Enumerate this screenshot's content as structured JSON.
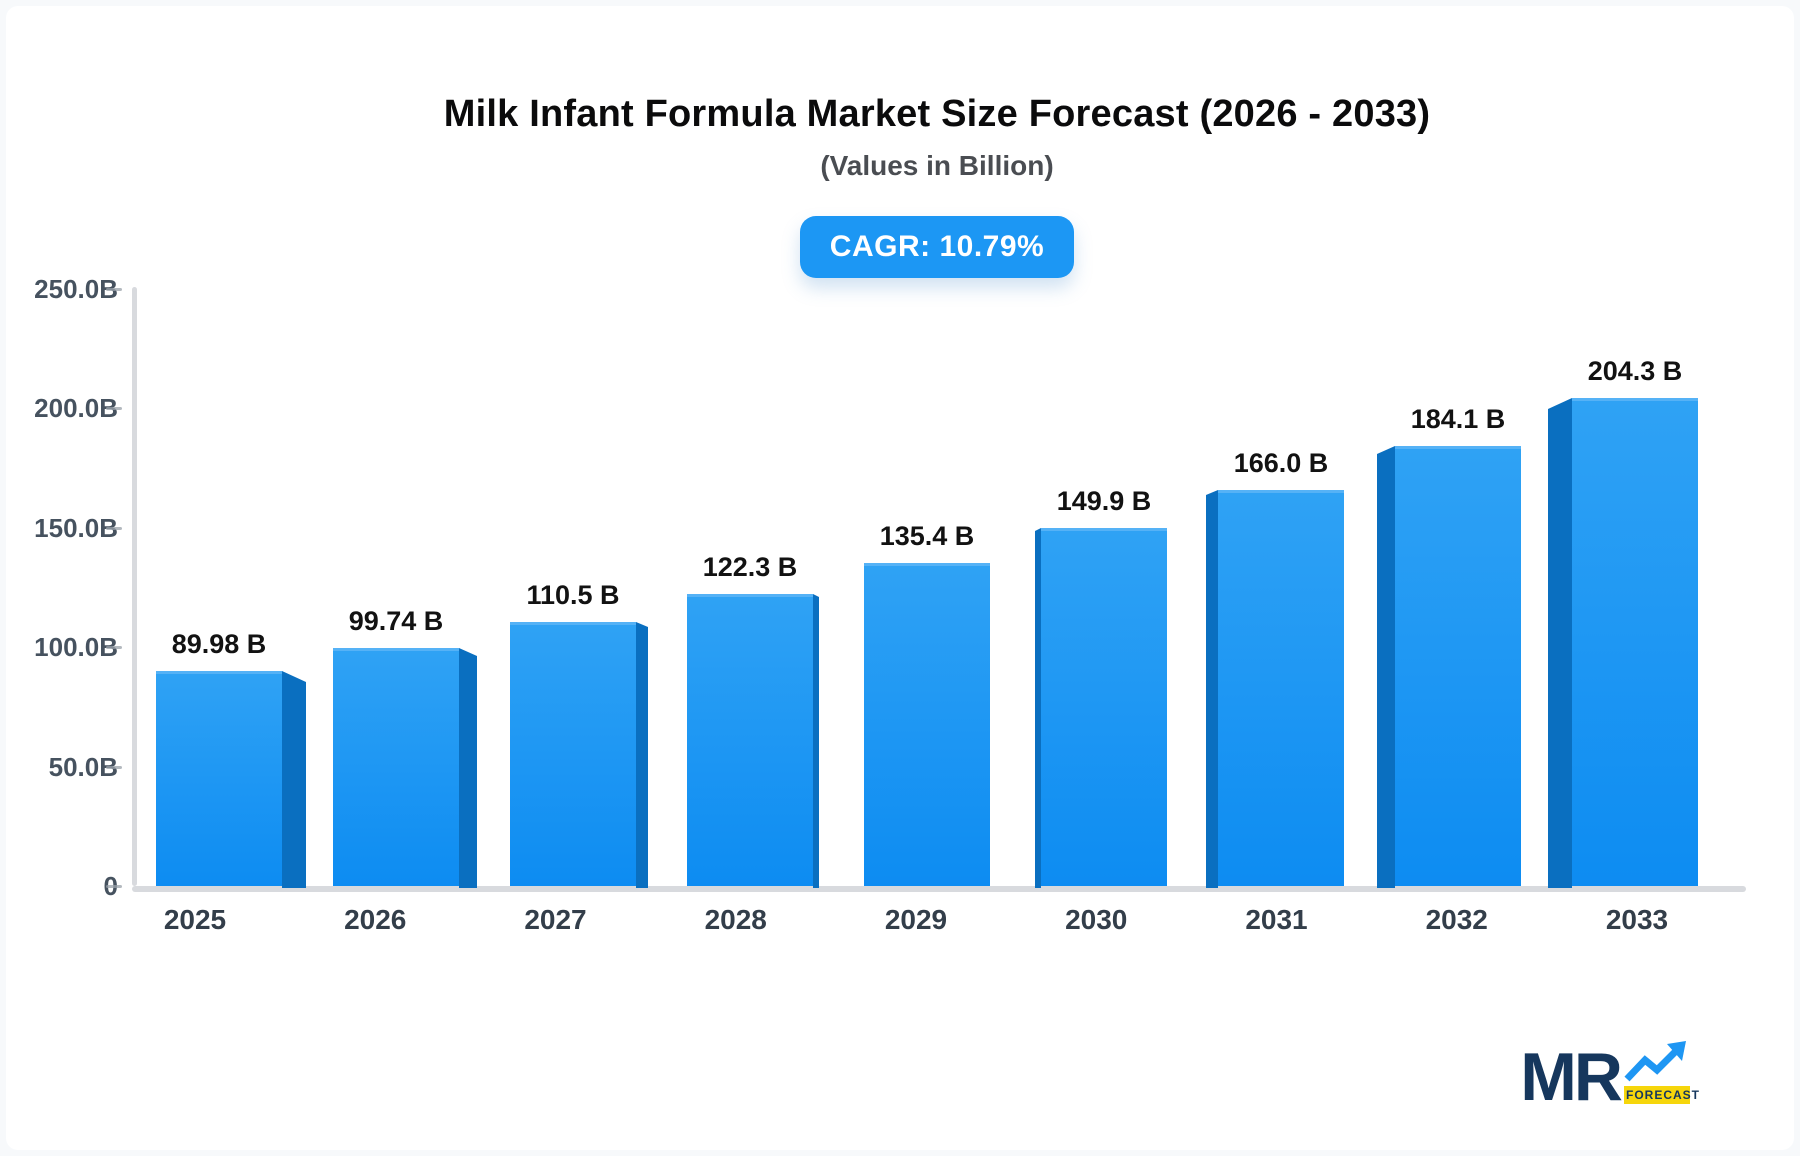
{
  "header": {
    "title": "Milk Infant Formula Market Size Forecast (2026 - 2033)",
    "subtitle": "(Values in Billion)",
    "cagr_label": "CAGR: 10.79%"
  },
  "chart_data": {
    "type": "bar",
    "bar_style": "3d-column",
    "title": "Milk Infant Formula Market Size Forecast (2026 - 2033)",
    "subtitle": "(Values in Billion)",
    "cagr_percent": 10.79,
    "values_unit": "Billion",
    "categories": [
      "2025",
      "2026",
      "2027",
      "2028",
      "2029",
      "2030",
      "2031",
      "2032",
      "2033"
    ],
    "values": [
      89.98,
      99.74,
      110.5,
      122.3,
      135.4,
      149.9,
      166.0,
      184.1,
      204.3
    ],
    "value_labels": [
      "89.98 B",
      "99.74 B",
      "110.5 B",
      "122.3 B",
      "135.4 B",
      "149.9 B",
      "166.0 B",
      "184.1 B",
      "204.3 B"
    ],
    "ylim": [
      0,
      250
    ],
    "yticks": [
      {
        "value": 0,
        "label": "0"
      },
      {
        "value": 50,
        "label": "50.0B"
      },
      {
        "value": 100,
        "label": "100.0B"
      },
      {
        "value": 150,
        "label": "150.0B"
      },
      {
        "value": 200,
        "label": "200.0B"
      },
      {
        "value": 250,
        "label": "250.0B"
      }
    ],
    "grid": false,
    "legend": false,
    "colors": {
      "bar_face_top": "#2fa2f4",
      "bar_face_bottom": "#0d8cf2",
      "bar_top_edge": "#55b2f6",
      "bar_side": "#0a6fc0",
      "badge_bg": "#1c97f4",
      "badge_text": "#ffffff",
      "axis": "#d8dade",
      "tick": "#9aa1a9",
      "y_label": "#46525f",
      "x_label": "#333e4a",
      "value_label": "#121212"
    }
  },
  "logo": {
    "brand": "MR",
    "tagline": "FORECAST",
    "colors": {
      "navy": "#16375d",
      "blue": "#1e96f3",
      "yellow": "#f6d60b"
    }
  }
}
